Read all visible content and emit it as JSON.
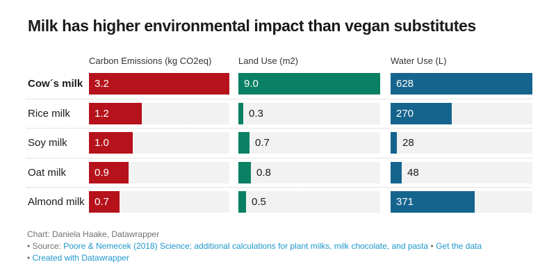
{
  "chart_data": {
    "type": "bar",
    "orientation": "horizontal",
    "title": "Milk has higher environmental impact than vegan substitutes",
    "categories": [
      "Cow´s milk",
      "Rice milk",
      "Soy milk",
      "Oat milk",
      "Almond milk"
    ],
    "emphasized_category": "Cow´s milk",
    "series": [
      {
        "name": "Carbon Emissions (kg CO2eq)",
        "values": [
          3.2,
          1.2,
          1.0,
          0.9,
          0.7
        ],
        "display_values": [
          "3.2",
          "1.2",
          "1.0",
          "0.9",
          "0.7"
        ],
        "max": 3.2,
        "color": "#b5121b"
      },
      {
        "name": "Land Use (m2)",
        "values": [
          9.0,
          0.3,
          0.7,
          0.8,
          0.5
        ],
        "display_values": [
          "9.0",
          "0.3",
          "0.7",
          "0.8",
          "0.5"
        ],
        "max": 9.0,
        "color": "#098063"
      },
      {
        "name": "Water Use (L)",
        "values": [
          628,
          270,
          28,
          48,
          371
        ],
        "display_values": [
          "628",
          "270",
          "28",
          "48",
          "371"
        ],
        "max": 628,
        "color": "#15648d"
      }
    ],
    "legend_position": "none",
    "grid": false
  },
  "footer": {
    "byline": "Chart: Daniela Haake, Datawrapper",
    "bullet": "•",
    "source_label": "Source:",
    "source_link": "Poore & Nemecek (2018) Science; additional calculations for plant milks, milk chocolate, and pasta",
    "dot": "•",
    "get_data_link": "Get the data",
    "created_link": "Created with Datawrapper"
  },
  "colors": {
    "carbon": "#b5121b",
    "land": "#098063",
    "water": "#15648d",
    "bar_track": "#f2f2f2",
    "title_text": "#1a1a1a",
    "header_text": "#333333",
    "footer_text": "#6f6f6f",
    "link": "#1e96cc",
    "separator": "#c9c9c9"
  }
}
